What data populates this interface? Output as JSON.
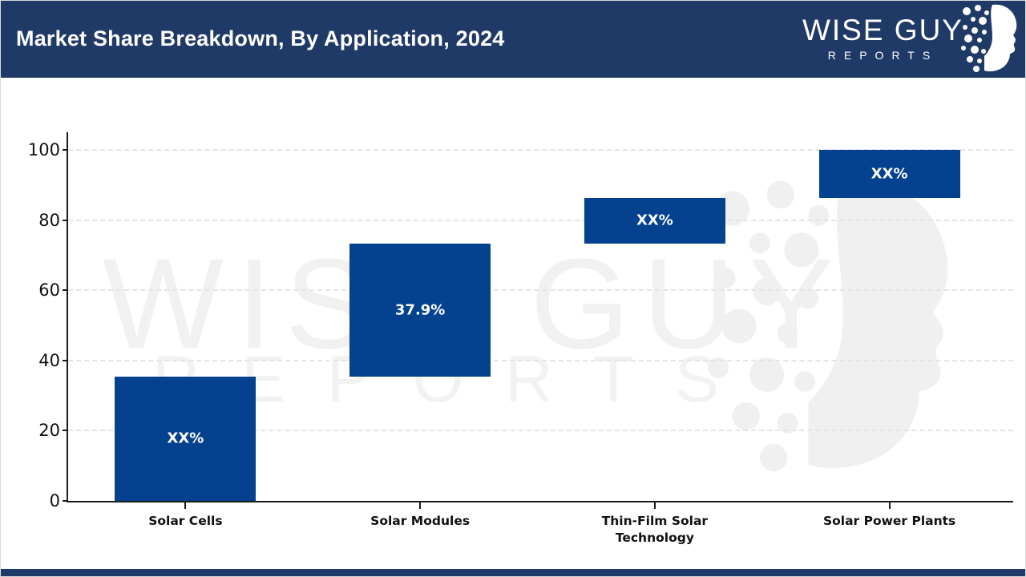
{
  "header": {
    "title": "Market Share Breakdown, By Application, 2024",
    "bg_color": "#203a68",
    "logo": {
      "line1": "WISE GUY",
      "line2": "REPORTS"
    }
  },
  "watermark": {
    "line1": "WISE GUY",
    "line2": "REPORTS"
  },
  "colors": {
    "bar_fill": "#04418f",
    "header_navy": "#203a68",
    "gridline_gray": "#e4e4e4",
    "watermark_gray": "#f1f1f1",
    "bar_value_text": "#ffffff",
    "axis_text": "#111111"
  },
  "chart_data": {
    "type": "bar",
    "subtype": "waterfall",
    "title": "Market Share Breakdown, By Application, 2024",
    "xlabel": "",
    "ylabel": "",
    "categories": [
      "Solar Cells",
      "Solar Modules",
      "Thin-Film Solar Technology",
      "Solar Power Plants"
    ],
    "segments": [
      {
        "category": "Solar Cells",
        "start": 0,
        "end": 35.5,
        "value": 35.5,
        "label": "XX%"
      },
      {
        "category": "Solar Modules",
        "start": 35.5,
        "end": 73.4,
        "value": 37.9,
        "label": "37.9%"
      },
      {
        "category": "Thin-Film Solar Technology",
        "start": 73.4,
        "end": 86.4,
        "value": 13.0,
        "label": "XX%"
      },
      {
        "category": "Solar Power Plants",
        "start": 86.4,
        "end": 100,
        "value": 13.6,
        "label": "XX%"
      }
    ],
    "yticks": [
      0,
      20,
      40,
      60,
      80,
      100
    ],
    "ylim": [
      0,
      105
    ],
    "grid": "dashed horizontal",
    "legend": "none"
  }
}
